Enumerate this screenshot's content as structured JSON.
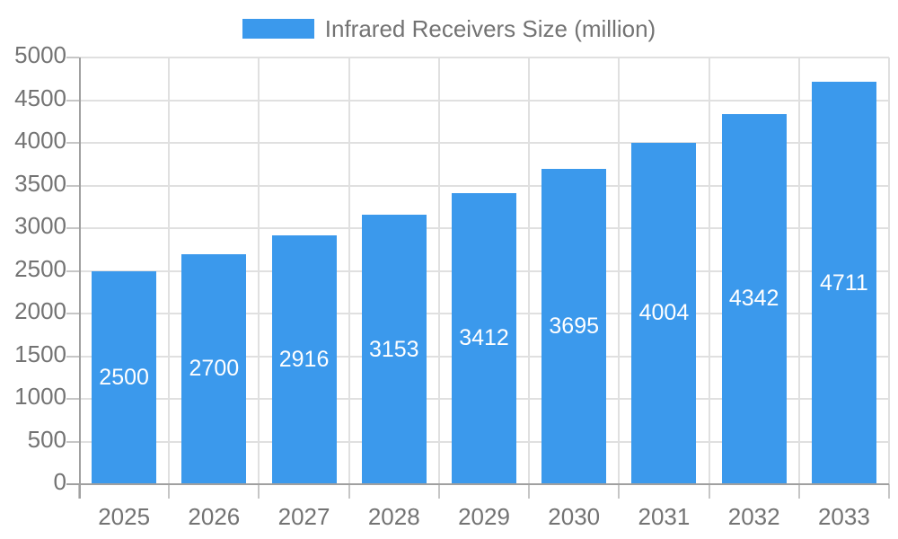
{
  "legend": {
    "series_label": "Infrared Receivers Size (million)"
  },
  "chart_data": {
    "type": "bar",
    "title": "Infrared Receivers Size (million)",
    "categories": [
      "2025",
      "2026",
      "2027",
      "2028",
      "2029",
      "2030",
      "2031",
      "2032",
      "2033"
    ],
    "series": [
      {
        "name": "Infrared Receivers Size (million)",
        "values": [
          2500,
          2700,
          2916,
          3153,
          3412,
          3695,
          4004,
          4342,
          4711
        ]
      }
    ],
    "xlabel": "",
    "ylabel": "",
    "ylim": [
      0,
      5000
    ],
    "yticks": [
      0,
      500,
      1000,
      1500,
      2000,
      2500,
      3000,
      3500,
      4000,
      4500,
      5000
    ],
    "grid": true,
    "legend_position": "top-center",
    "data_labels": "inside-center-white",
    "colors": {
      "bar": "#3b99ec",
      "bar_label": "#ffffff",
      "axis_text": "#737373",
      "gridline": "#e0e0e0",
      "axis_line": "#a0a0a0",
      "tick": "#c6c6c6",
      "background": "#ffffff"
    }
  }
}
